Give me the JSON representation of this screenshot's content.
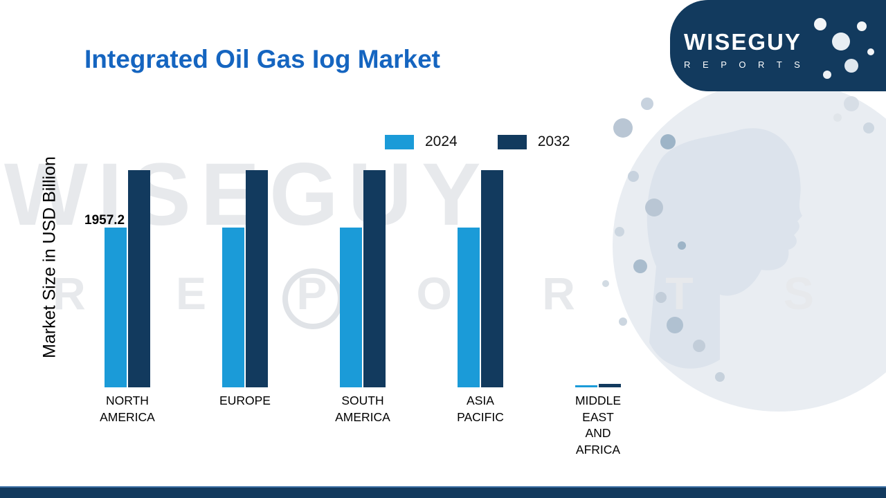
{
  "logo": {
    "name": "WISEGUY",
    "tagline": "R E P O R T S"
  },
  "watermark": {
    "line1": "WISEGUY",
    "line2": "R E P O R T S"
  },
  "chart_data": {
    "type": "bar",
    "title": "Integrated Oil Gas Iog Market",
    "ylabel": "Market Size in USD Billion",
    "categories": [
      "NORTH AMERICA",
      "EUROPE",
      "SOUTH AMERICA",
      "ASIA PACIFIC",
      "MIDDLE EAST AND AFRICA"
    ],
    "category_labels": [
      "NORTH\nAMERICA",
      "EUROPE",
      "SOUTH\nAMERICA",
      "ASIA\nPACIFIC",
      "MIDDLE\nEAST\nAND\nAFRICA"
    ],
    "series": [
      {
        "name": "2024",
        "color": "#1b9bd8",
        "values": [
          1957.2,
          1957.2,
          1957.2,
          1957.2,
          25
        ]
      },
      {
        "name": "2032",
        "color": "#123a5e",
        "values": [
          2664,
          2664,
          2664,
          2664,
          45
        ]
      }
    ],
    "data_labels": [
      {
        "text": "1957.2",
        "series": "2024",
        "category": "NORTH AMERICA"
      }
    ],
    "ylim": [
      0,
      2800
    ],
    "grid": false,
    "legend_position": "top-center"
  },
  "colors": {
    "title_blue": "#1565c0",
    "bar_2024": "#1b9bd8",
    "bar_2032": "#123a5e",
    "footer_bar": "#123a5e",
    "watermark_gray": "#e7e9ec"
  }
}
